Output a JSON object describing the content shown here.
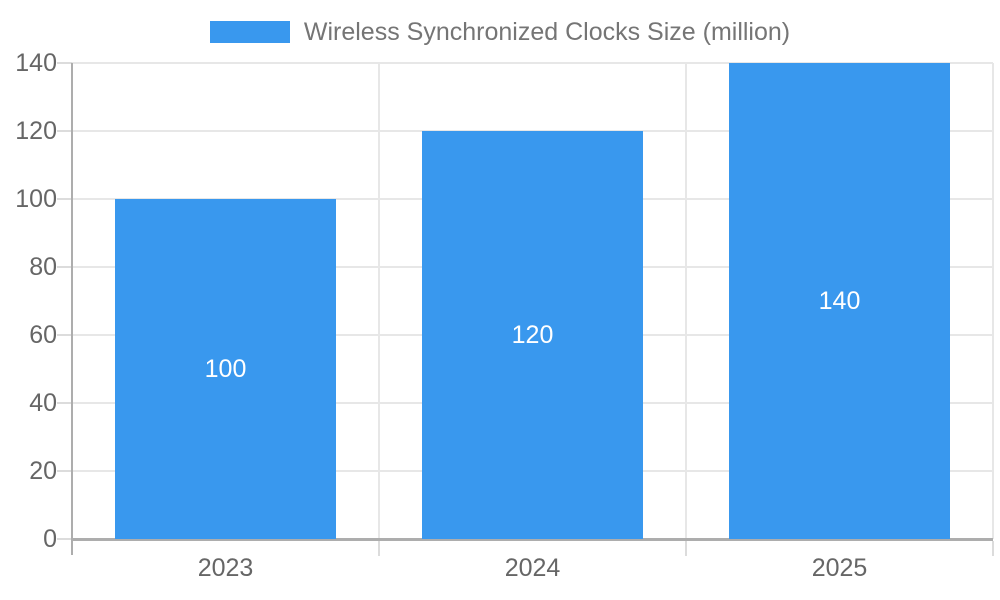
{
  "chart_data": {
    "type": "bar",
    "title": "",
    "legend": {
      "label": "Wireless Synchronized Clocks Size (million)",
      "position": "top-center"
    },
    "categories": [
      "2023",
      "2024",
      "2025"
    ],
    "series": [
      {
        "name": "Wireless Synchronized Clocks Size (million)",
        "values": [
          100,
          120,
          140
        ]
      }
    ],
    "xlabel": "",
    "ylabel": "",
    "ylim": [
      0,
      140
    ],
    "yticks": [
      0,
      20,
      40,
      60,
      80,
      100,
      120,
      140
    ],
    "grid": true,
    "data_labels_inside_bars": true,
    "colors": {
      "bar": "#3998EE",
      "gridline": "#E7E7E7",
      "axis_line": "#ADADAD",
      "tick_mark": "#DCDCDC",
      "y_tick_label": "#666666",
      "x_tick_label": "#666666",
      "legend_text": "#757575",
      "data_label": "#FFFFFF",
      "background": "#FFFFFF"
    }
  }
}
